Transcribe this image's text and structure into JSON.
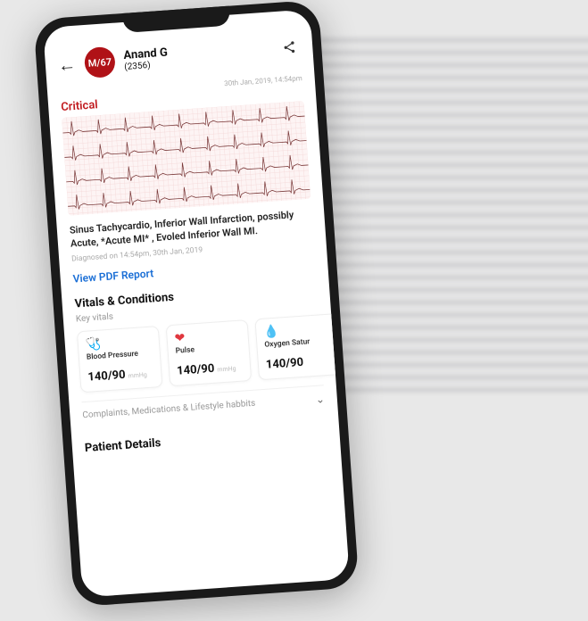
{
  "header": {
    "avatar_label": "M/67",
    "name": "Anand G",
    "patient_id": "(2356)"
  },
  "record": {
    "timestamp": "30th Jan, 2019, 14:54pm",
    "status_label": "Critical",
    "status_color": "#c11b1f",
    "ecg": {
      "bg_color": "#fdf4f4",
      "grid_color": "#f3d6d6",
      "trace_color": "#7a3a3a",
      "rows": 4,
      "beats_per_row": 9
    },
    "diagnosis": "Sinus Tachycardio, Inferior Wall Infarction, possibly Acute, *Acute MI* , Evoled Inferior Wall MI.",
    "diagnosed_on": "Diagnosed on 14:54pm, 30th Jan, 2019",
    "pdf_link_label": "View PDF Report"
  },
  "vitals": {
    "section_title": "Vitals & Conditions",
    "subtitle": "Key vitals",
    "cards": [
      {
        "icon": "🩺",
        "icon_color": "#8a6fb5",
        "label": "Blood Pressure",
        "value": "140/90",
        "unit": "mmHg"
      },
      {
        "icon": "❤",
        "icon_color": "#e0373f",
        "label": "Pulse",
        "value": "140/90",
        "unit": "mmHg"
      },
      {
        "icon": "💧",
        "icon_color": "#4a6fd6",
        "label": "Oxygen Satur",
        "value": "140/90",
        "unit": ""
      }
    ],
    "expand_label": "Complaints, Medications & Lifestyle habbits"
  },
  "patient_details": {
    "section_title": "Patient Details"
  },
  "colors": {
    "brand_red": "#b01217",
    "link_blue": "#1b6fd6",
    "text_dark": "#111111",
    "text_muted": "#999999",
    "card_border": "#eeeeee"
  }
}
